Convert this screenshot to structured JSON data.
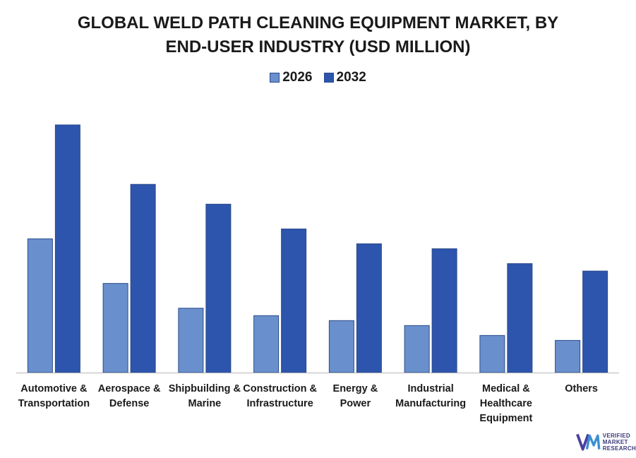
{
  "title_lines": [
    "GLOBAL WELD PATH CLEANING EQUIPMENT MARKET, BY",
    "END-USER INDUSTRY (USD MILLION)"
  ],
  "legend": [
    {
      "label": "2026",
      "color": "#6990cc"
    },
    {
      "label": "2032",
      "color": "#2e55ad"
    }
  ],
  "logo": {
    "lines": [
      "VERIFIED",
      "MARKET",
      "RESEARCH"
    ],
    "mark": "VM"
  },
  "chart_data": {
    "type": "bar",
    "title": "GLOBAL WELD PATH CLEANING EQUIPMENT MARKET, BY END-USER INDUSTRY (USD MILLION)",
    "categories": [
      [
        "Automotive &",
        "Transportation"
      ],
      [
        "Aerospace &",
        "Defense"
      ],
      [
        "Shipbuilding &",
        "Marine"
      ],
      [
        "Construction &",
        "Infrastructure"
      ],
      [
        "Energy &",
        "Power"
      ],
      [
        "Industrial",
        "Manufacturing"
      ],
      [
        "Medical &",
        "Healthcare",
        "Equipment"
      ],
      [
        "Others"
      ]
    ],
    "series": [
      {
        "name": "2026",
        "color": "#6990cc",
        "values": [
          54,
          36,
          26,
          23,
          21,
          19,
          15,
          13
        ]
      },
      {
        "name": "2032",
        "color": "#2e55ad",
        "values": [
          100,
          76,
          68,
          58,
          52,
          50,
          44,
          41
        ]
      }
    ],
    "ylim": [
      0,
      100
    ],
    "grid": false,
    "legend_position": "top-center",
    "xlabel": "",
    "ylabel": ""
  }
}
